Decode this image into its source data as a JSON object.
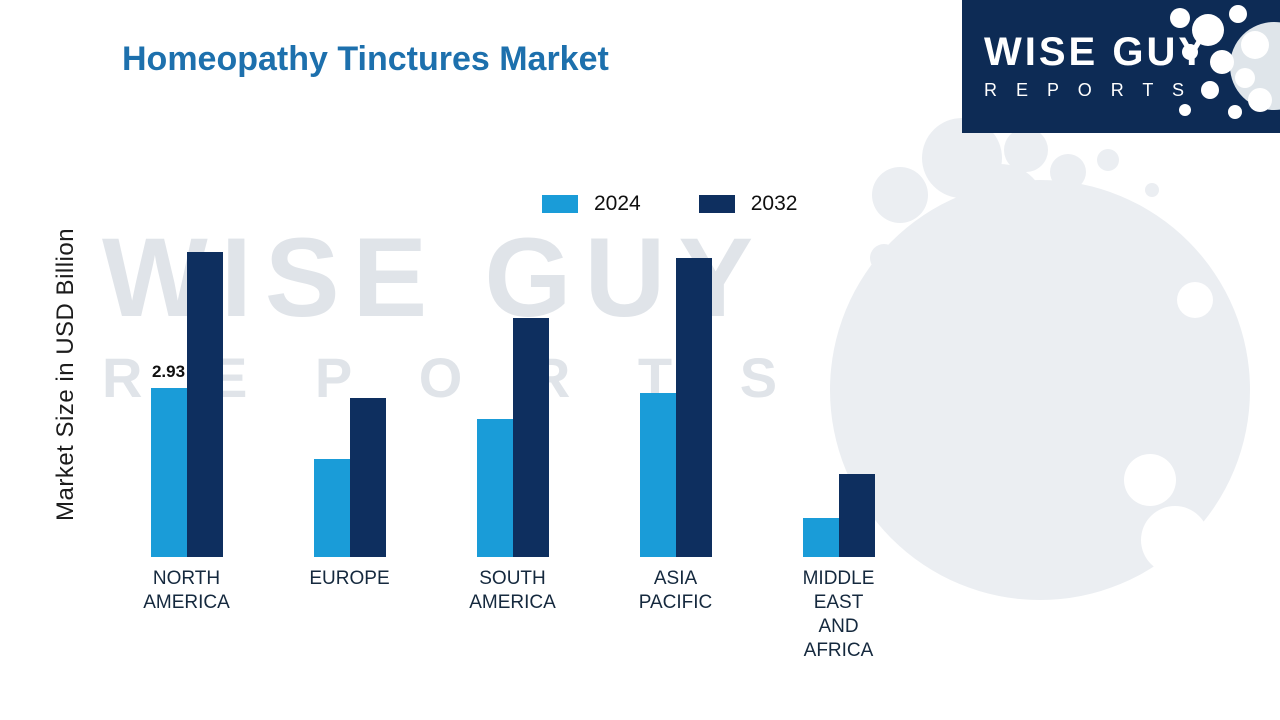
{
  "header": {
    "title": "Homeopathy Tinctures Market",
    "title_color": "#1d70ad"
  },
  "logo": {
    "line1": "WISE GUY",
    "line2": "R E P O R T S",
    "bg_color": "#0d2b55",
    "text_color": "#ffffff"
  },
  "watermark": {
    "line1": "WISE GUY",
    "line2": "R E P O R T S"
  },
  "chart_data": {
    "type": "bar",
    "title": "Homeopathy Tinctures Market",
    "ylabel": "Market Size in USD Billion",
    "xlabel": "",
    "ylim": [
      0,
      5.5
    ],
    "grid": false,
    "legend_position": "top-center",
    "categories": [
      "NORTH AMERICA",
      "EUROPE",
      "SOUTH AMERICA",
      "ASIA PACIFIC",
      "MIDDLE EAST AND AFRICA"
    ],
    "category_label_lines": [
      [
        "NORTH",
        "AMERICA"
      ],
      [
        "EUROPE"
      ],
      [
        "SOUTH",
        "AMERICA"
      ],
      [
        "ASIA",
        "PACIFIC"
      ],
      [
        "MIDDLE",
        "EAST",
        "AND",
        "AFRICA"
      ]
    ],
    "series": [
      {
        "name": "2024",
        "color": "#1a9cd8",
        "values": [
          2.93,
          1.7,
          2.4,
          2.85,
          0.68
        ]
      },
      {
        "name": "2032",
        "color": "#0e2f5f",
        "values": [
          5.3,
          2.76,
          4.16,
          5.2,
          1.44
        ]
      }
    ],
    "annotations": [
      {
        "series": "2024",
        "category": "NORTH AMERICA",
        "text": "2.93"
      }
    ]
  }
}
